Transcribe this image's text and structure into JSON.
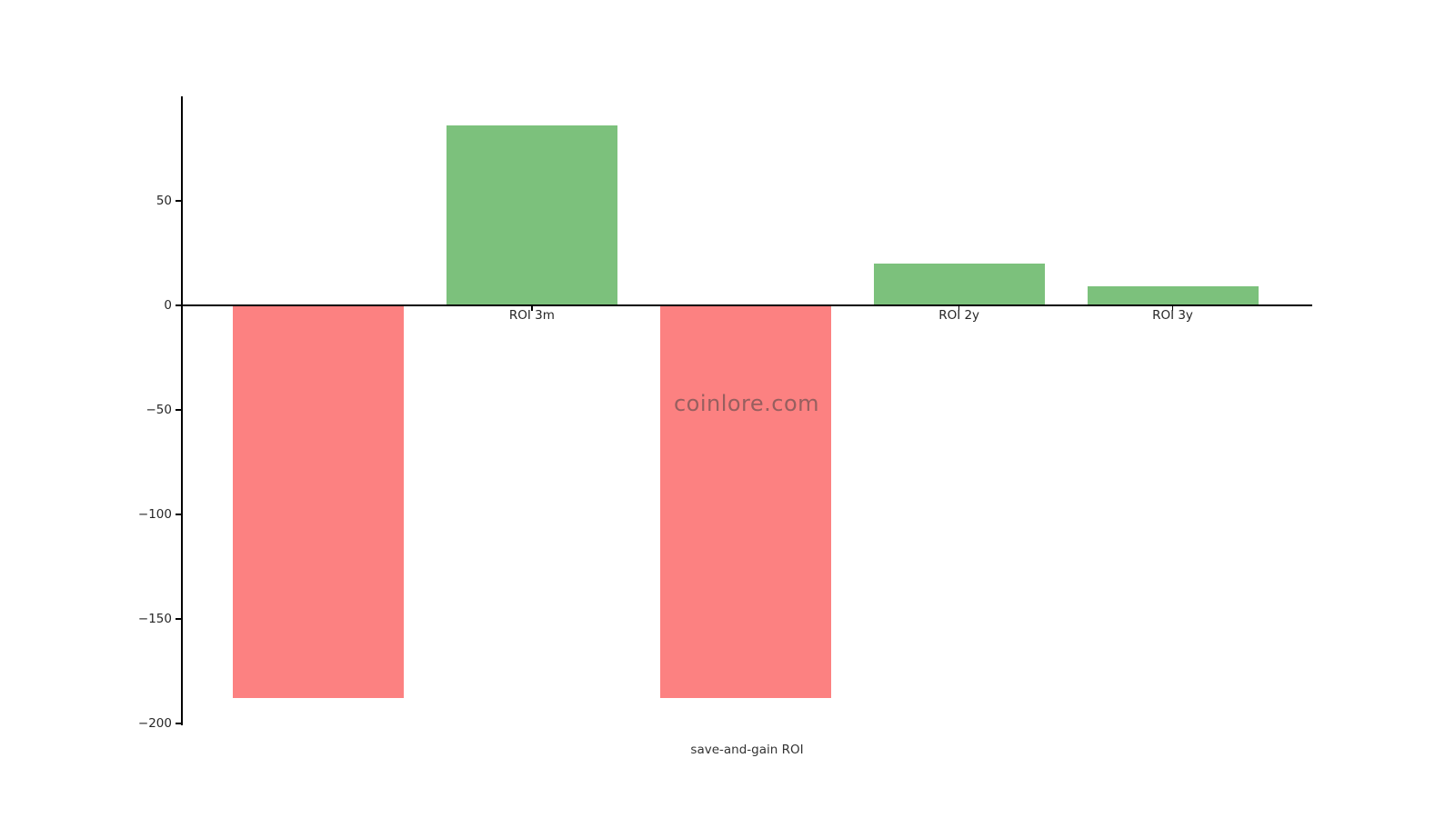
{
  "page": {
    "background": "#ffffff"
  },
  "chart_data": {
    "type": "bar",
    "title": "save-and-gain ROI",
    "watermark": "coinlore.com",
    "categories": [
      "",
      "ROI 3m",
      "",
      "ROI 2y",
      "ROI 3y"
    ],
    "category_visible": [
      false,
      true,
      false,
      true,
      true
    ],
    "values": [
      -188,
      86,
      -188,
      20,
      9
    ],
    "bar_color_positive": "#7cc17c",
    "bar_color_negative": "#fc8181",
    "axis_color": "#000000",
    "tick_label_color": "#262626",
    "yticks": [
      50,
      0,
      -50,
      -100,
      -150,
      -200
    ],
    "ytick_labels": [
      "50",
      "0",
      "−50",
      "−100",
      "−150",
      "−200"
    ],
    "ylim": [
      -201,
      100
    ],
    "xlabel": "",
    "ylabel": "",
    "grid": false,
    "legend": false
  }
}
